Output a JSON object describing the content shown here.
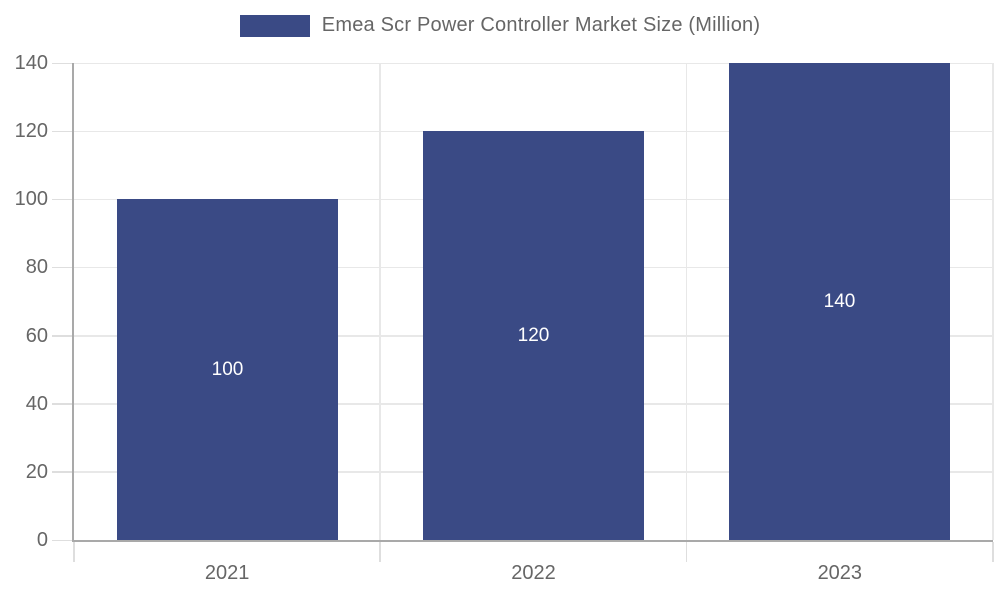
{
  "chart_data": {
    "type": "bar",
    "title": "Emea Scr Power Controller Market Size (Million)",
    "categories": [
      "2021",
      "2022",
      "2023"
    ],
    "values": [
      100,
      120,
      140
    ],
    "xlabel": "",
    "ylabel": "",
    "ylim": [
      0,
      140
    ],
    "ytick_step": 20,
    "yticks": [
      0,
      20,
      40,
      60,
      80,
      100,
      120,
      140
    ],
    "grid": true,
    "legend_position": "top-center",
    "colors": {
      "bar": "#3A4A85",
      "bar_value_label": "#FFFFFF",
      "tick_text": "#666666",
      "title_text": "#666666",
      "gridline": "#E8E8E8",
      "axis_line": "#A9A9A9"
    }
  }
}
